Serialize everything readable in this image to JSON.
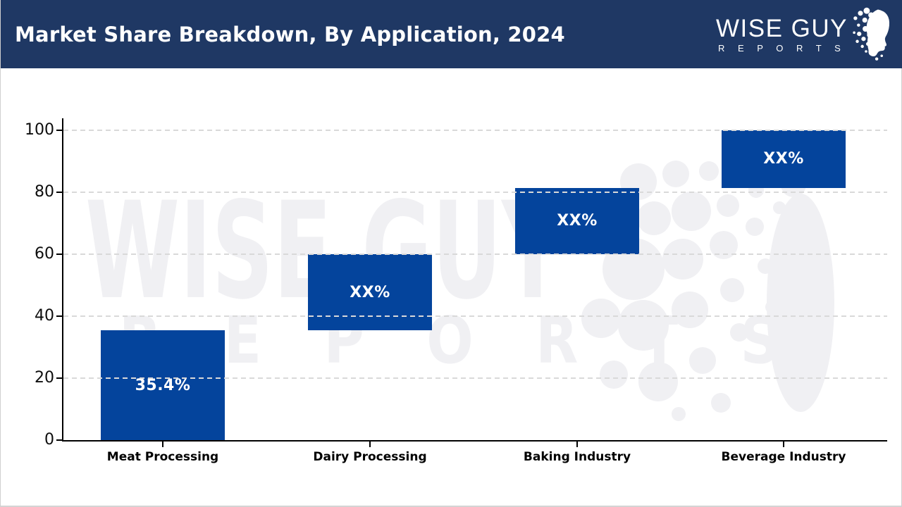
{
  "header": {
    "title": "Market Share Breakdown, By Application, 2024",
    "logo_line1": "WISE GUY",
    "logo_line2": "R E P O R T S"
  },
  "watermark": {
    "line1": "WISE GUY",
    "line2": "R E P O R T S"
  },
  "chart_data": {
    "type": "bar",
    "subtype": "waterfall",
    "title": "Market Share Breakdown, By Application, 2024",
    "categories": [
      "Meat Processing",
      "Dairy Processing",
      "Baking Industry",
      "Beverage Industry"
    ],
    "series": [
      {
        "name": "Market share (%)",
        "ranges": [
          [
            0,
            35.4
          ],
          [
            35.4,
            60
          ],
          [
            60,
            81.4
          ],
          [
            81.4,
            100
          ]
        ],
        "increments": [
          35.4,
          24.6,
          21.4,
          18.6
        ]
      }
    ],
    "bar_labels": [
      "35.4%",
      "XX%",
      "XX%",
      "XX%"
    ],
    "yticks": [
      0,
      20,
      40,
      60,
      80,
      100
    ],
    "ylim": [
      0,
      105
    ],
    "xlabel": "",
    "ylabel": "",
    "grid": "horizontal-dashed",
    "legend": "none"
  },
  "colors": {
    "header_bg": "#1f3864",
    "bar": "#04449c",
    "bar_label": "#ffffff",
    "grid": "#d9d9d9",
    "axis": "#000000",
    "watermark": "#f0f0f3",
    "page_border": "#cfcfcf"
  }
}
